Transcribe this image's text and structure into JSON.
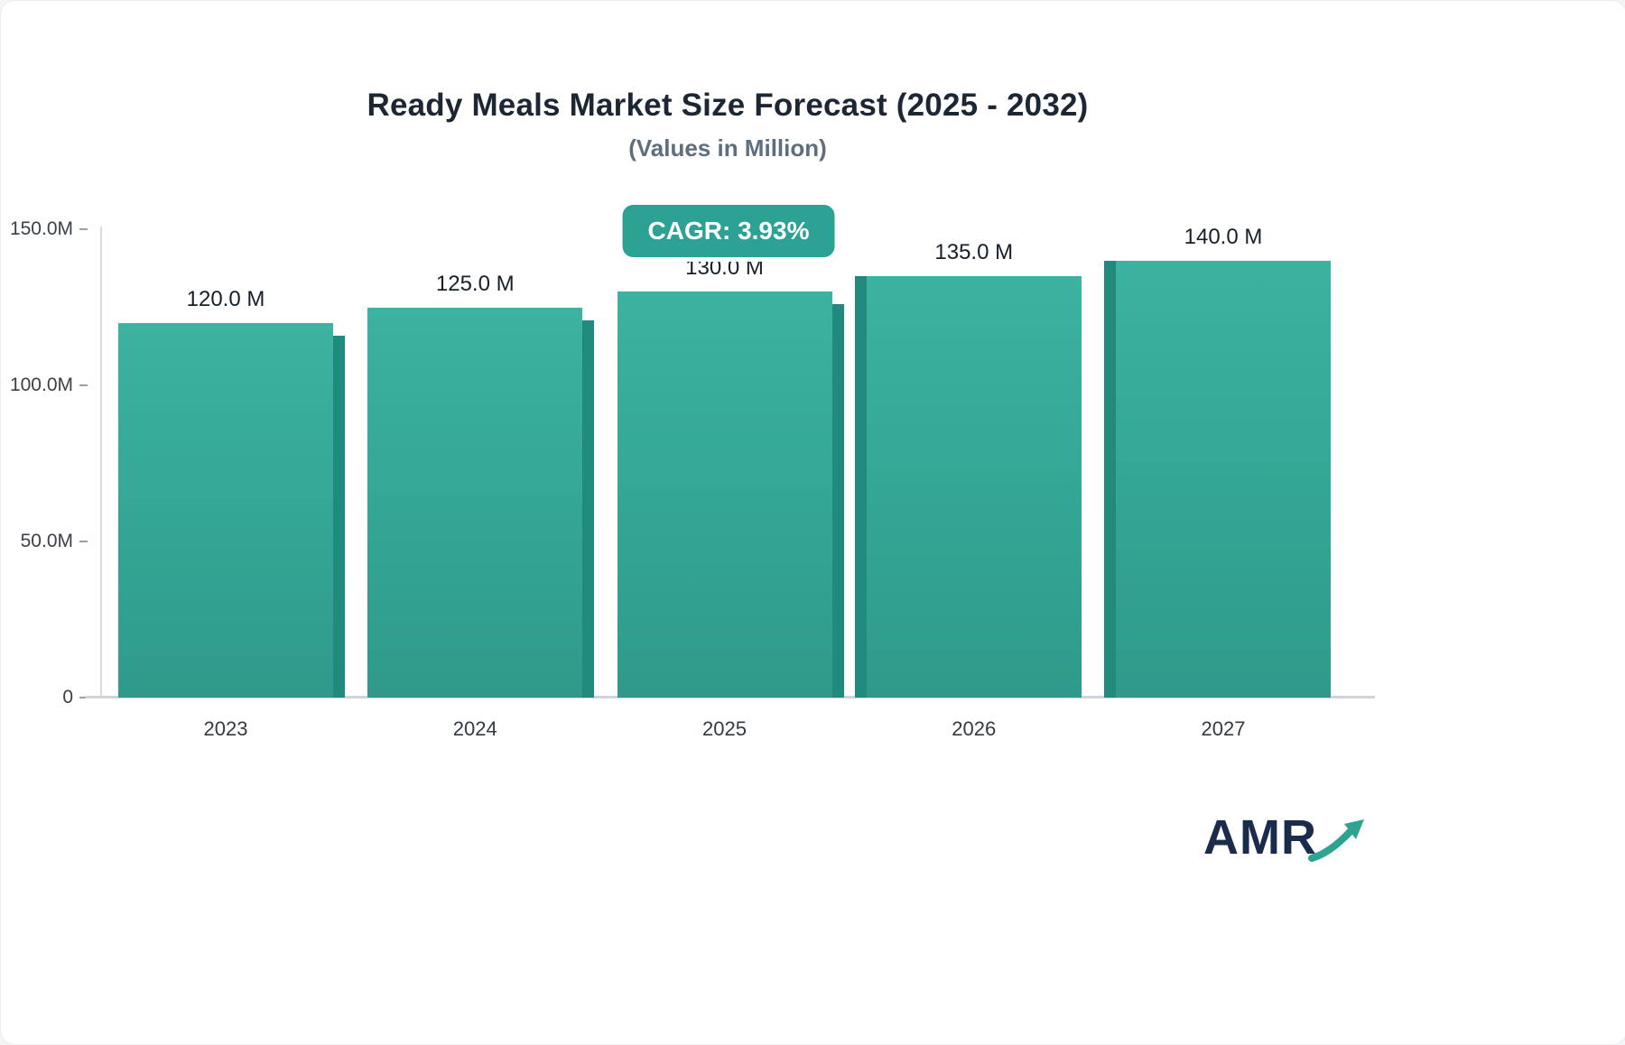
{
  "page": {
    "title": "Ready Meals Market Size Forecast (2025 - 2032)",
    "subtitle": "(Values in Million)"
  },
  "cagr": {
    "label": "CAGR: 3.93%"
  },
  "logo": {
    "text": "AMR"
  },
  "chart_data": {
    "type": "bar",
    "title": "Ready Meals Market Size Forecast (2025 - 2032)",
    "subtitle": "(Values in Million)",
    "categories": [
      "2023",
      "2024",
      "2025",
      "2026",
      "2027"
    ],
    "values": [
      120,
      125,
      130,
      135,
      140
    ],
    "value_labels": [
      "120.0 M",
      "125.0 M",
      "130.0 M",
      "135.0 M",
      "140.0 M"
    ],
    "unit": "Million",
    "annotation": "CAGR: 3.93%",
    "ylim": [
      0,
      150
    ],
    "y_ticks": [
      {
        "label": "150.0M",
        "value": 150
      },
      {
        "label": "100.0M",
        "value": 100
      },
      {
        "label": "50.0M",
        "value": 50
      },
      {
        "label": "0",
        "value": 0
      }
    ],
    "grid": false,
    "legend": false,
    "bar_color_top": "#3cb2a1",
    "bar_color_mid": "#35a897",
    "bar_color_bottom": "#2f9a8b",
    "edge_color": "#1f8a7d",
    "edge_sides": [
      "right",
      "right",
      "right",
      "left",
      "left"
    ],
    "accent_color": "#2ba294",
    "title_color": "#1d2733",
    "subtitle_color": "#5d6f7e"
  }
}
